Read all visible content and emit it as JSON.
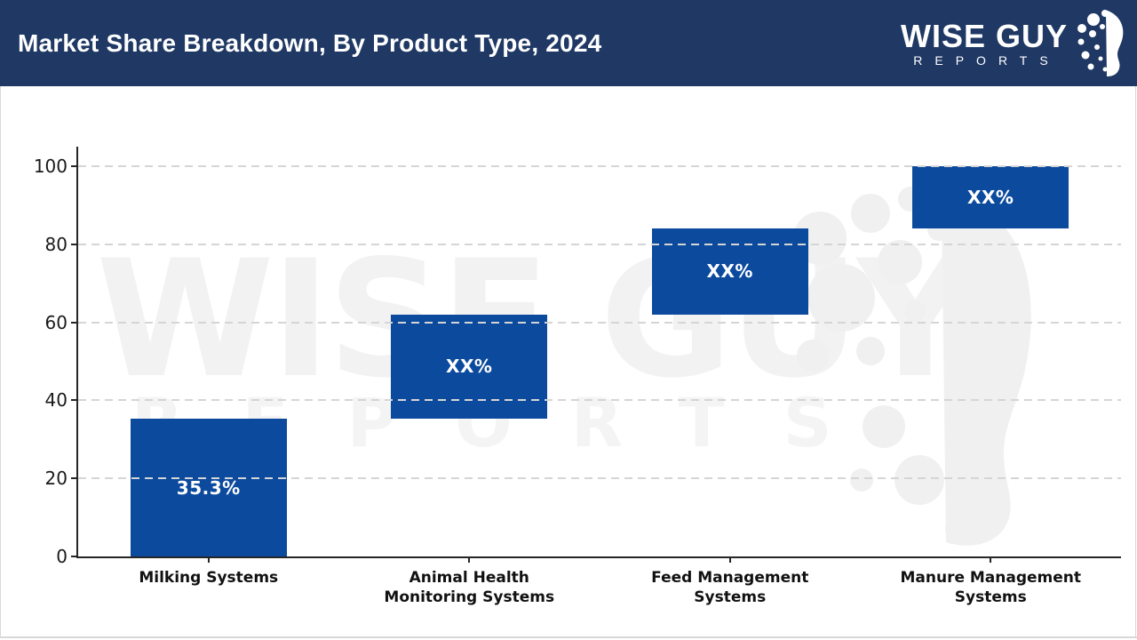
{
  "header": {
    "title": "Market Share Breakdown, By Product Type, 2024",
    "bg_color": "#1f3864",
    "logo": {
      "wordmark": "WISE GUY",
      "subtitle": "REPORTS"
    }
  },
  "watermark": {
    "line1": "WISE GUY",
    "line2": "REPORTS"
  },
  "chart_data": {
    "type": "bar",
    "subtype": "stacked-waterfall",
    "title": "Market Share Breakdown, By Product Type, 2024",
    "units": "%",
    "categories": [
      "Milking Systems",
      "Animal Health Monitoring Systems",
      "Feed Management Systems",
      "Manure Management Systems"
    ],
    "category_label_lines": [
      [
        "Milking Systems"
      ],
      [
        "Animal Health",
        "Monitoring Systems"
      ],
      [
        "Feed Management",
        "Systems"
      ],
      [
        "Manure Management",
        "Systems"
      ]
    ],
    "segments": [
      {
        "category": "Milking Systems",
        "start": 0,
        "end": 35.3,
        "label": "35.3%"
      },
      {
        "category": "Animal Health Monitoring Systems",
        "start": 35.3,
        "end": 62,
        "label": "XX%"
      },
      {
        "category": "Feed Management Systems",
        "start": 62,
        "end": 84,
        "label": "XX%"
      },
      {
        "category": "Manure Management Systems",
        "start": 84,
        "end": 100,
        "label": "XX%"
      }
    ],
    "y_ticks": [
      0,
      20,
      40,
      60,
      80,
      100
    ],
    "ylim": [
      0,
      105
    ],
    "xlabel": "",
    "ylabel": "",
    "grid": "horizontal-dashed",
    "legend": "none",
    "bar_color": "#0c4a9e",
    "bar_label_color": "#ffffff",
    "axis_color": "#262626",
    "grid_color": "#d5d5d5"
  }
}
